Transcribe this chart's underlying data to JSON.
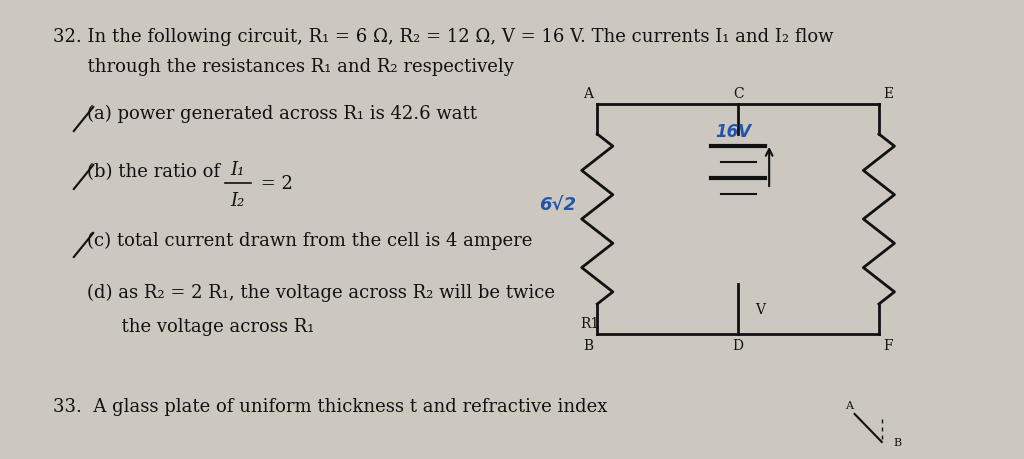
{
  "bg_color": "#ccc8c0",
  "title_text": "32. In the following circuit, R₁ = 6 Ω, R₂ = 12 Ω, V = 16 V. The currents I₁ and I₂ flow",
  "title_line2": "      through the resistances R₁ and R₂ respectively",
  "option_a": "(a) power generated across R₁ is 42.6 watt",
  "option_b_pre": "(b) the ratio of ",
  "option_c": "(c) total current drawn from the cell is 4 ampere",
  "option_d": "(d) as R₂ = 2 R₁, the voltage across R₂ will be twice",
  "option_d2": "      the voltage across R₁",
  "q33": "33.  A glass plate of uniform thickness t and refractive index",
  "r1_label": "6√2",
  "r1_sub": "R1",
  "battery_label": "16V",
  "v_label": "V",
  "font_size_main": 13.0,
  "text_color": "#111111",
  "circuit_color": "#111111"
}
